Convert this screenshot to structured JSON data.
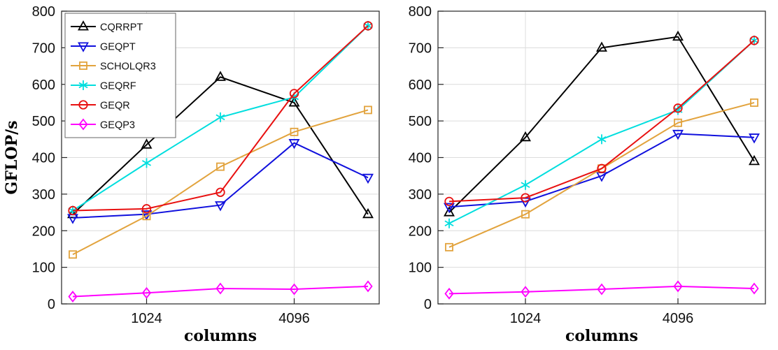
{
  "figure": {
    "background": "#ffffff",
    "grid_color": "#dcdcdc",
    "axis_color": "#262626"
  },
  "chart_data": [
    {
      "type": "line",
      "x": [
        512,
        1024,
        2048,
        4096,
        8192
      ],
      "x_scale": "log2",
      "xticks": [
        {
          "value": 1024,
          "label": "1024"
        },
        {
          "value": 4096,
          "label": "4096"
        }
      ],
      "xlabel": "columns",
      "ylabel": "GFLOP/s",
      "ylim": [
        0,
        800
      ],
      "ytick_step": 100,
      "grid": true,
      "legend": {
        "show": true,
        "position": "top-left"
      },
      "series": [
        {
          "name": "CQRRPT",
          "color": "#000000",
          "marker": "triangle-up",
          "values": [
            245,
            435,
            620,
            550,
            245
          ]
        },
        {
          "name": "GEQPT",
          "color": "#1010dd",
          "marker": "triangle-down",
          "values": [
            235,
            245,
            270,
            440,
            345
          ]
        },
        {
          "name": "SCHOLQR3",
          "color": "#e2a33d",
          "marker": "square",
          "values": [
            135,
            240,
            375,
            470,
            530
          ]
        },
        {
          "name": "GEQRF",
          "color": "#00dede",
          "marker": "asterisk",
          "values": [
            255,
            385,
            510,
            565,
            760
          ]
        },
        {
          "name": "GEQR",
          "color": "#e81010",
          "marker": "circle",
          "values": [
            255,
            260,
            305,
            575,
            760
          ]
        },
        {
          "name": "GEQP3",
          "color": "#ff00ff",
          "marker": "diamond",
          "values": [
            20,
            30,
            42,
            40,
            48
          ]
        }
      ]
    },
    {
      "type": "line",
      "x": [
        512,
        1024,
        2048,
        4096,
        8192
      ],
      "x_scale": "log2",
      "xticks": [
        {
          "value": 1024,
          "label": "1024"
        },
        {
          "value": 4096,
          "label": "4096"
        }
      ],
      "xlabel": "columns",
      "ylabel": "",
      "ylim": [
        0,
        800
      ],
      "ytick_step": 100,
      "grid": true,
      "legend": {
        "show": false,
        "position": "none"
      },
      "series": [
        {
          "name": "CQRRPT",
          "color": "#000000",
          "marker": "triangle-up",
          "values": [
            250,
            455,
            700,
            730,
            390
          ]
        },
        {
          "name": "GEQPT",
          "color": "#1010dd",
          "marker": "triangle-down",
          "values": [
            265,
            280,
            350,
            465,
            455
          ]
        },
        {
          "name": "SCHOLQR3",
          "color": "#e2a33d",
          "marker": "square",
          "values": [
            155,
            245,
            370,
            495,
            550
          ]
        },
        {
          "name": "GEQRF",
          "color": "#00dede",
          "marker": "asterisk",
          "values": [
            220,
            325,
            450,
            530,
            720
          ]
        },
        {
          "name": "GEQR",
          "color": "#e81010",
          "marker": "circle",
          "values": [
            280,
            290,
            370,
            535,
            720
          ]
        },
        {
          "name": "GEQP3",
          "color": "#ff00ff",
          "marker": "diamond",
          "values": [
            28,
            33,
            40,
            48,
            42
          ]
        }
      ]
    }
  ]
}
